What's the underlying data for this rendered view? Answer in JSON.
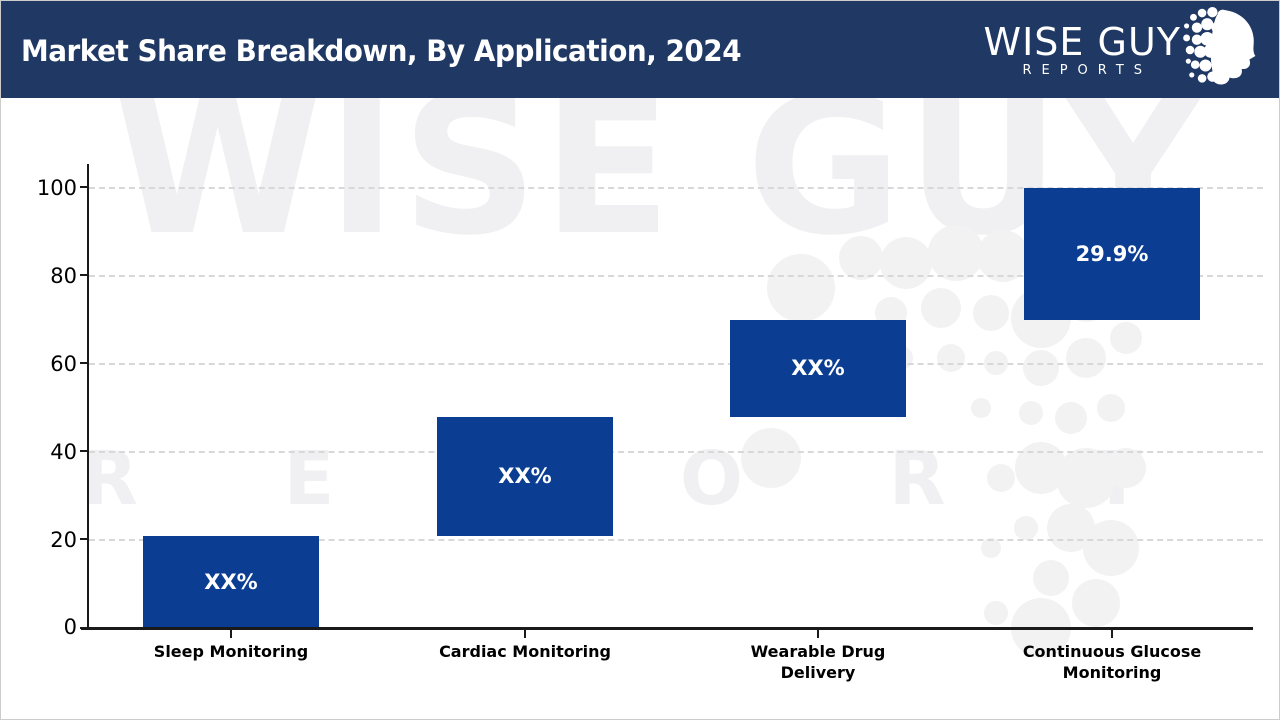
{
  "header": {
    "title": "Market Share Breakdown, By Application, 2024",
    "bg_color": "#1f3864",
    "logo": {
      "line1": "WISE GUY",
      "line2": "REPORTS"
    }
  },
  "watermark": {
    "line1": "WISE GUY",
    "line2": "R E P O R T S",
    "color": "#f0f0f2"
  },
  "chart_data": {
    "type": "bar",
    "subtype": "floating-waterfall",
    "title": "Market Share Breakdown, By Application, 2024",
    "categories": [
      "Sleep Monitoring",
      "Cardiac Monitoring",
      "Wearable Drug Delivery",
      "Continuous Glucose Monitoring"
    ],
    "segments": [
      {
        "category": "Sleep Monitoring",
        "start": 0,
        "end": 21,
        "value_label": "XX%"
      },
      {
        "category": "Cardiac Monitoring",
        "start": 21,
        "end": 48,
        "value_label": "XX%"
      },
      {
        "category": "Wearable Drug Delivery",
        "start": 48,
        "end": 70.1,
        "value_label": "XX%"
      },
      {
        "category": "Continuous Glucose Monitoring",
        "start": 70.1,
        "end": 100,
        "value_label": "29.9%"
      }
    ],
    "xlabel": "",
    "ylabel": "",
    "ylim": [
      0,
      100
    ],
    "yticks": [
      0,
      20,
      40,
      60,
      80,
      100
    ],
    "ytick_labels_top_to_bottom": [
      "100",
      "80",
      "60",
      "40",
      "20",
      "0"
    ],
    "grid": "dashed horizontal",
    "legend": "none",
    "bar_color": "#0b3e92",
    "bar_label_color": "#ffffff"
  }
}
